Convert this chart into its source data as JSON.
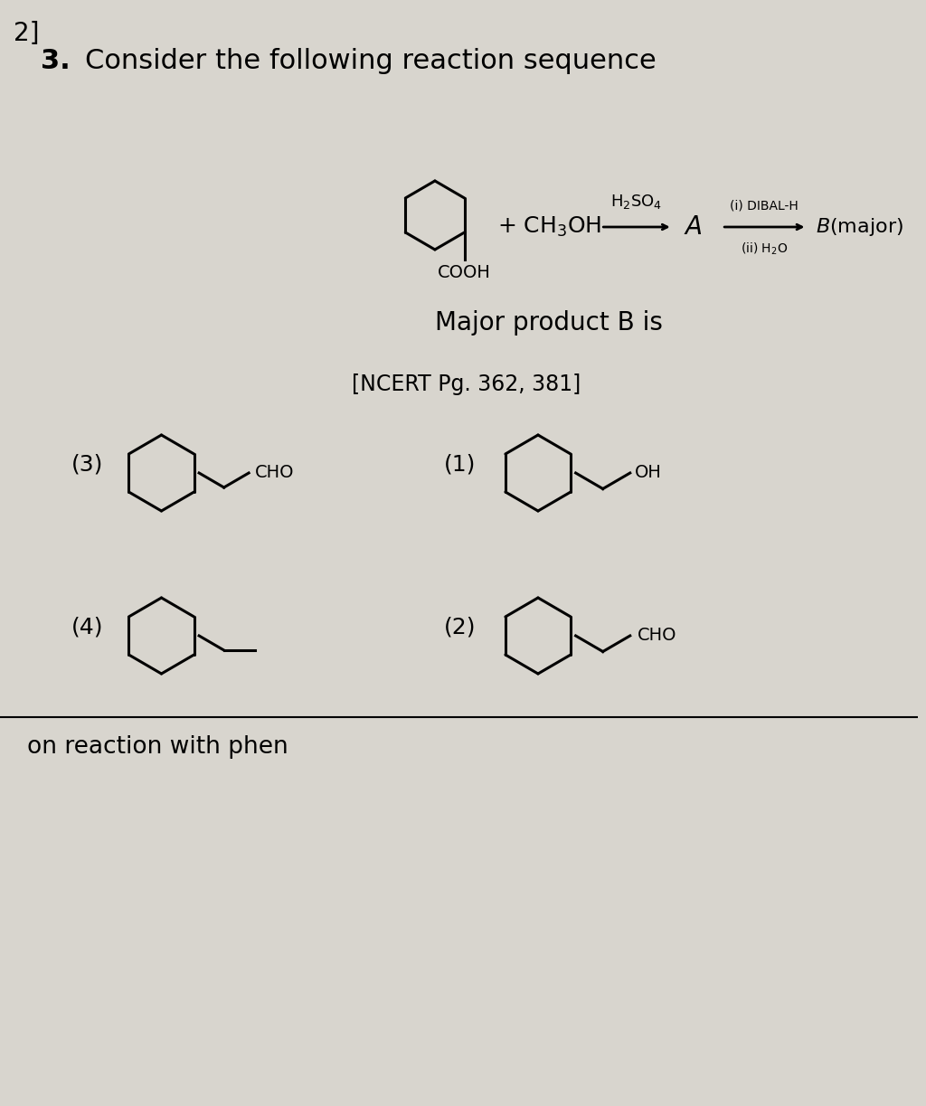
{
  "background_color": "#d8d5ce",
  "question_number": "3.",
  "question_text": "Consider the following reaction sequence",
  "reagent1": "+ CH₃OH",
  "catalyst1": "H₂SO₄",
  "intermediate": "A",
  "reagent2_i": "(i) DIBAL-H",
  "reagent2_ii": "(ii) H₂O",
  "product": "B(major)",
  "major_product_text": "Major product B is",
  "ncert_ref": "[NCERT Pg. 362, 381]",
  "option1_label": "(1)",
  "option2_label": "(2)",
  "option3_label": "(3)",
  "option4_label": "(4)"
}
